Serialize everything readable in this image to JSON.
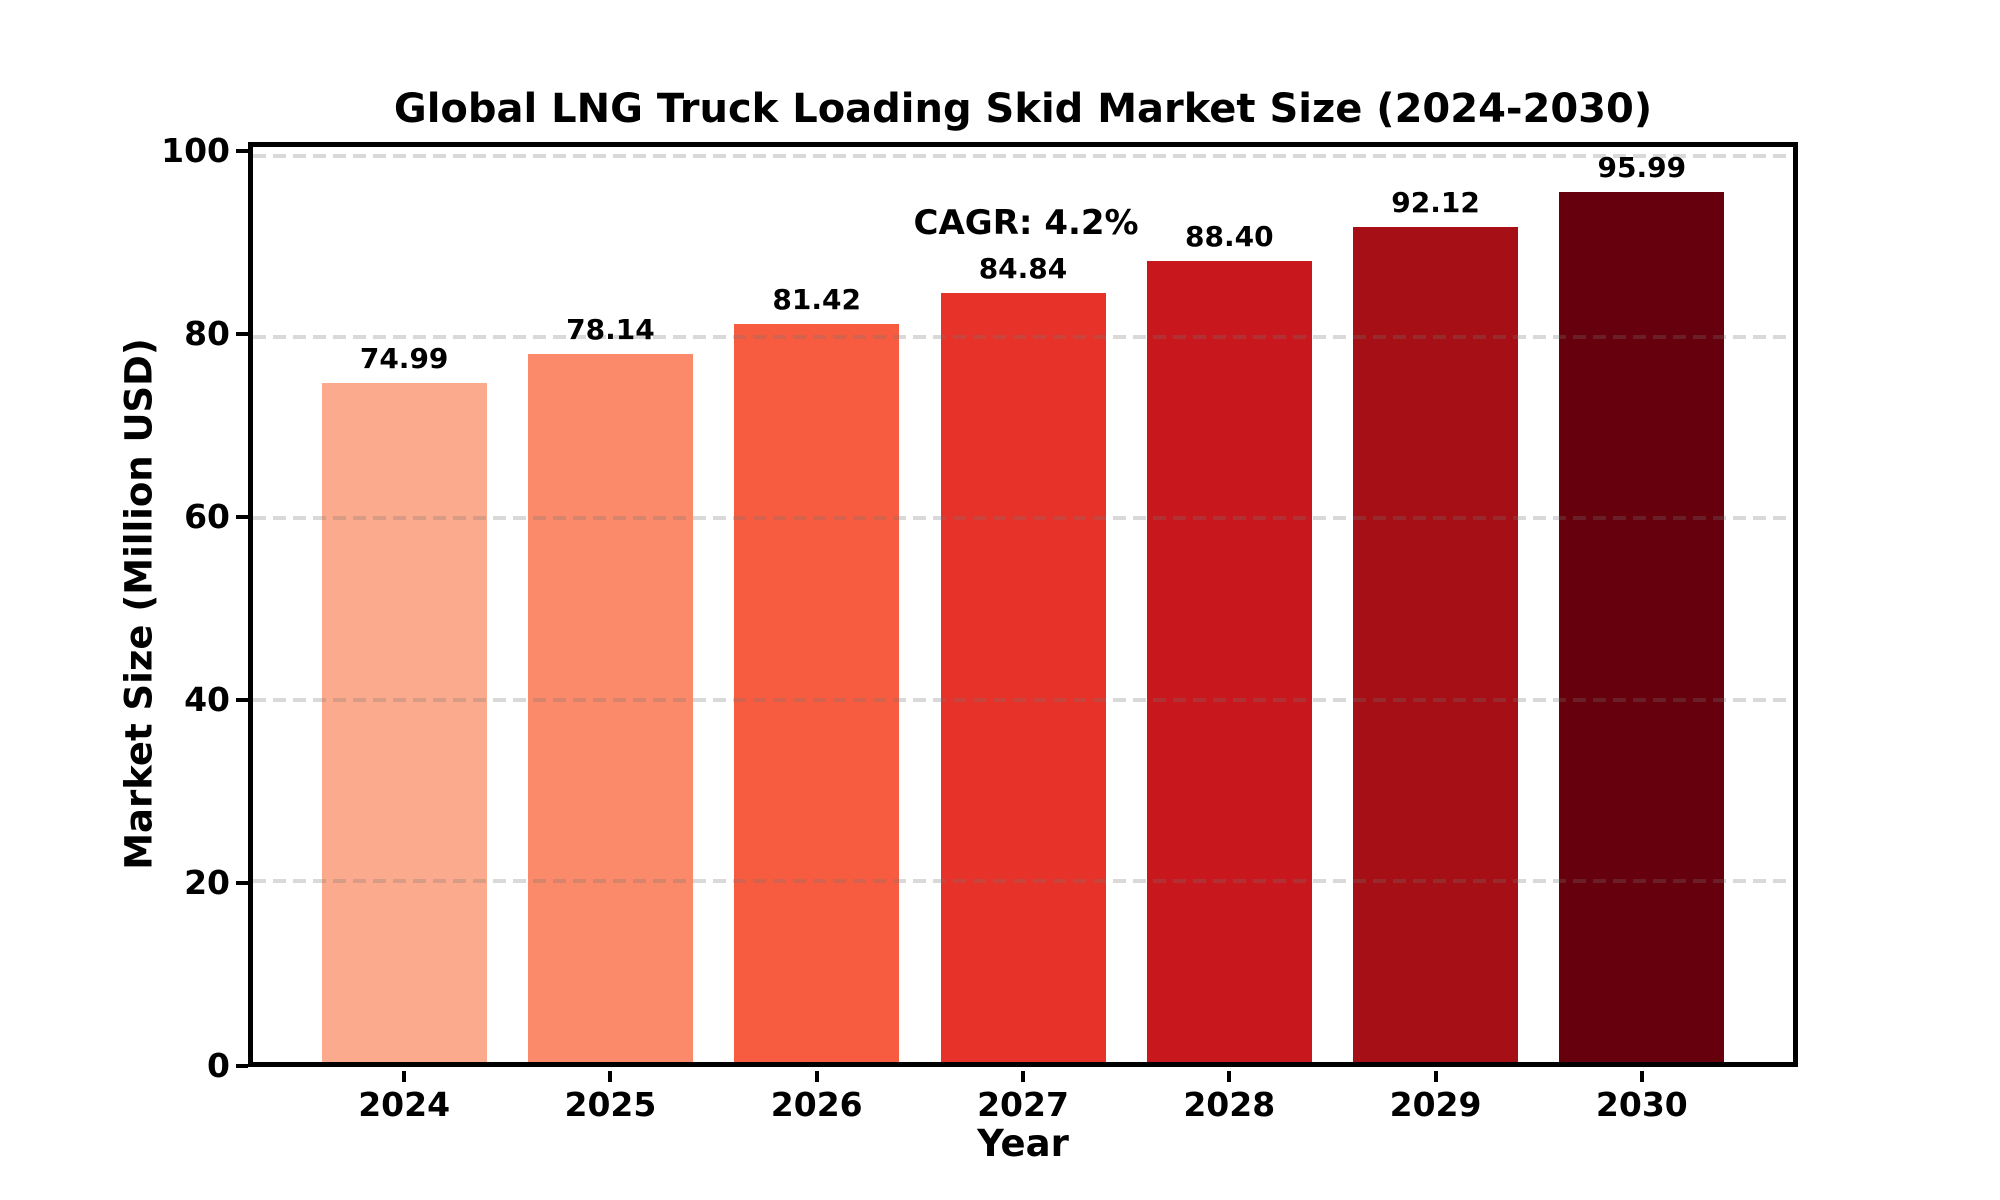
{
  "chart_data": {
    "type": "bar",
    "title": "Global LNG Truck Loading Skid Market Size (2024-2030)",
    "xlabel": "Year",
    "ylabel": "Market Size (Million USD)",
    "categories": [
      "2024",
      "2025",
      "2026",
      "2027",
      "2028",
      "2029",
      "2030"
    ],
    "values": [
      74.99,
      78.14,
      81.42,
      84.84,
      88.4,
      92.12,
      95.99
    ],
    "value_labels": [
      "74.99",
      "78.14",
      "81.42",
      "84.84",
      "88.40",
      "92.12",
      "95.99"
    ],
    "bar_colors": [
      "#fcaa8d",
      "#fb8a6a",
      "#f75b40",
      "#e73229",
      "#c9181d",
      "#a50f15",
      "#67000d"
    ],
    "annotation": {
      "text": "CAGR: 4.2%",
      "near_category": "2027",
      "y_value": 93
    },
    "ylim": [
      0,
      101
    ],
    "yticks": [
      0,
      20,
      40,
      60,
      80,
      100
    ],
    "ytick_labels": [
      "0",
      "20",
      "40",
      "60",
      "80",
      "100"
    ],
    "grid": {
      "axis": "y",
      "style": "dashed",
      "color_on_white": "#d9d9d9",
      "drawn_over_bars": true
    },
    "legend": "none",
    "text_color": "#000000",
    "background_color": "#ffffff",
    "spine_color": "#000000"
  }
}
